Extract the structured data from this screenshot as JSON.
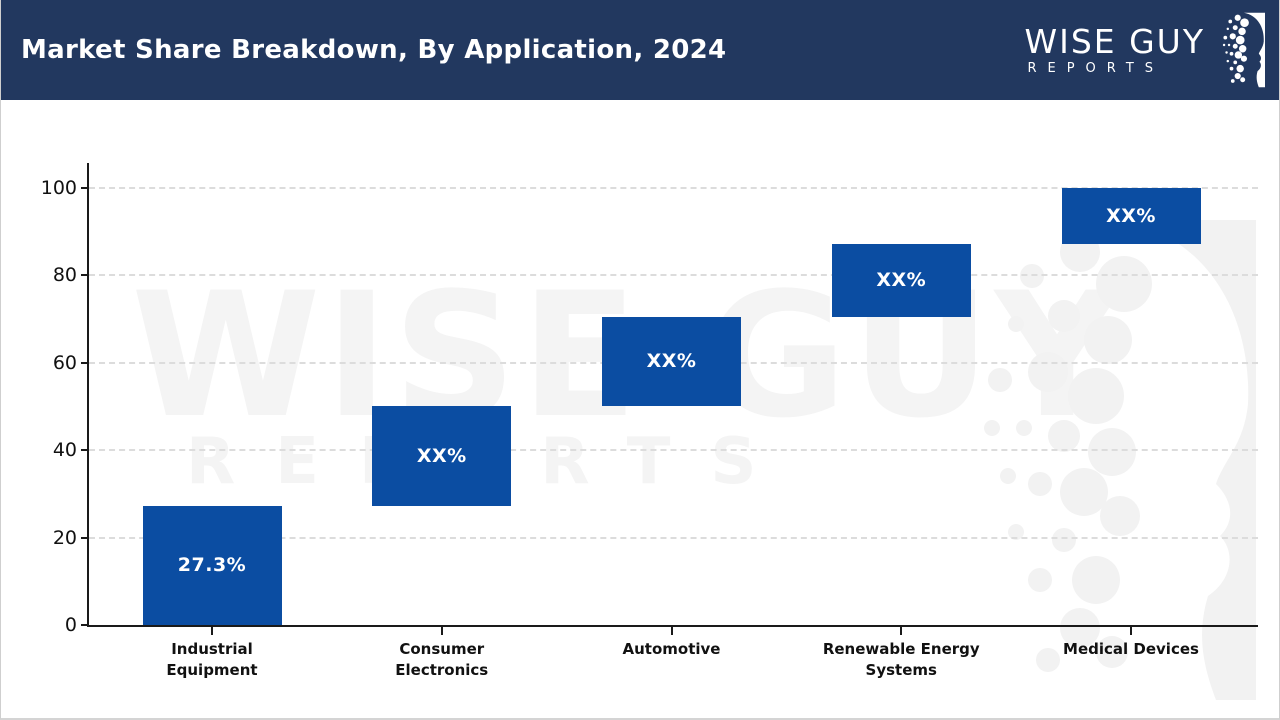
{
  "header": {
    "title": "Market Share Breakdown, By Application, 2024",
    "logo": {
      "line1": "WISE GUY",
      "line2": "REPORTS"
    }
  },
  "watermark": {
    "line1": "WISE GUY",
    "line2": "REPORTS"
  },
  "colors": {
    "header_bg": "#22385f",
    "bar": "#0b4da2",
    "grid": "#dcdcdc",
    "axis": "#1a1a1a",
    "bar_label_text": "#ffffff",
    "watermark": "#f4f4f4"
  },
  "chart_data": {
    "type": "bar",
    "subtype": "waterfall",
    "title": "Market Share Breakdown, By Application, 2024",
    "categories": [
      "Industrial\nEquipment",
      "Consumer\nElectronics",
      "Automotive",
      "Renewable Energy\nSystems",
      "Medical Devices"
    ],
    "segments": [
      {
        "start": 0,
        "end": 27.3,
        "label": "27.3%"
      },
      {
        "start": 27.3,
        "end": 50,
        "label": "XX%"
      },
      {
        "start": 50,
        "end": 70.5,
        "label": "XX%"
      },
      {
        "start": 70.5,
        "end": 87,
        "label": "XX%"
      },
      {
        "start": 87,
        "end": 100,
        "label": "XX%"
      }
    ],
    "y_ticks": [
      0,
      20,
      40,
      60,
      80,
      100
    ],
    "ylim": [
      0,
      105
    ],
    "xlabel": "",
    "ylabel": "",
    "grid": "dashed-horizontal",
    "legend": "none",
    "bar_color": "#0b4da2"
  }
}
